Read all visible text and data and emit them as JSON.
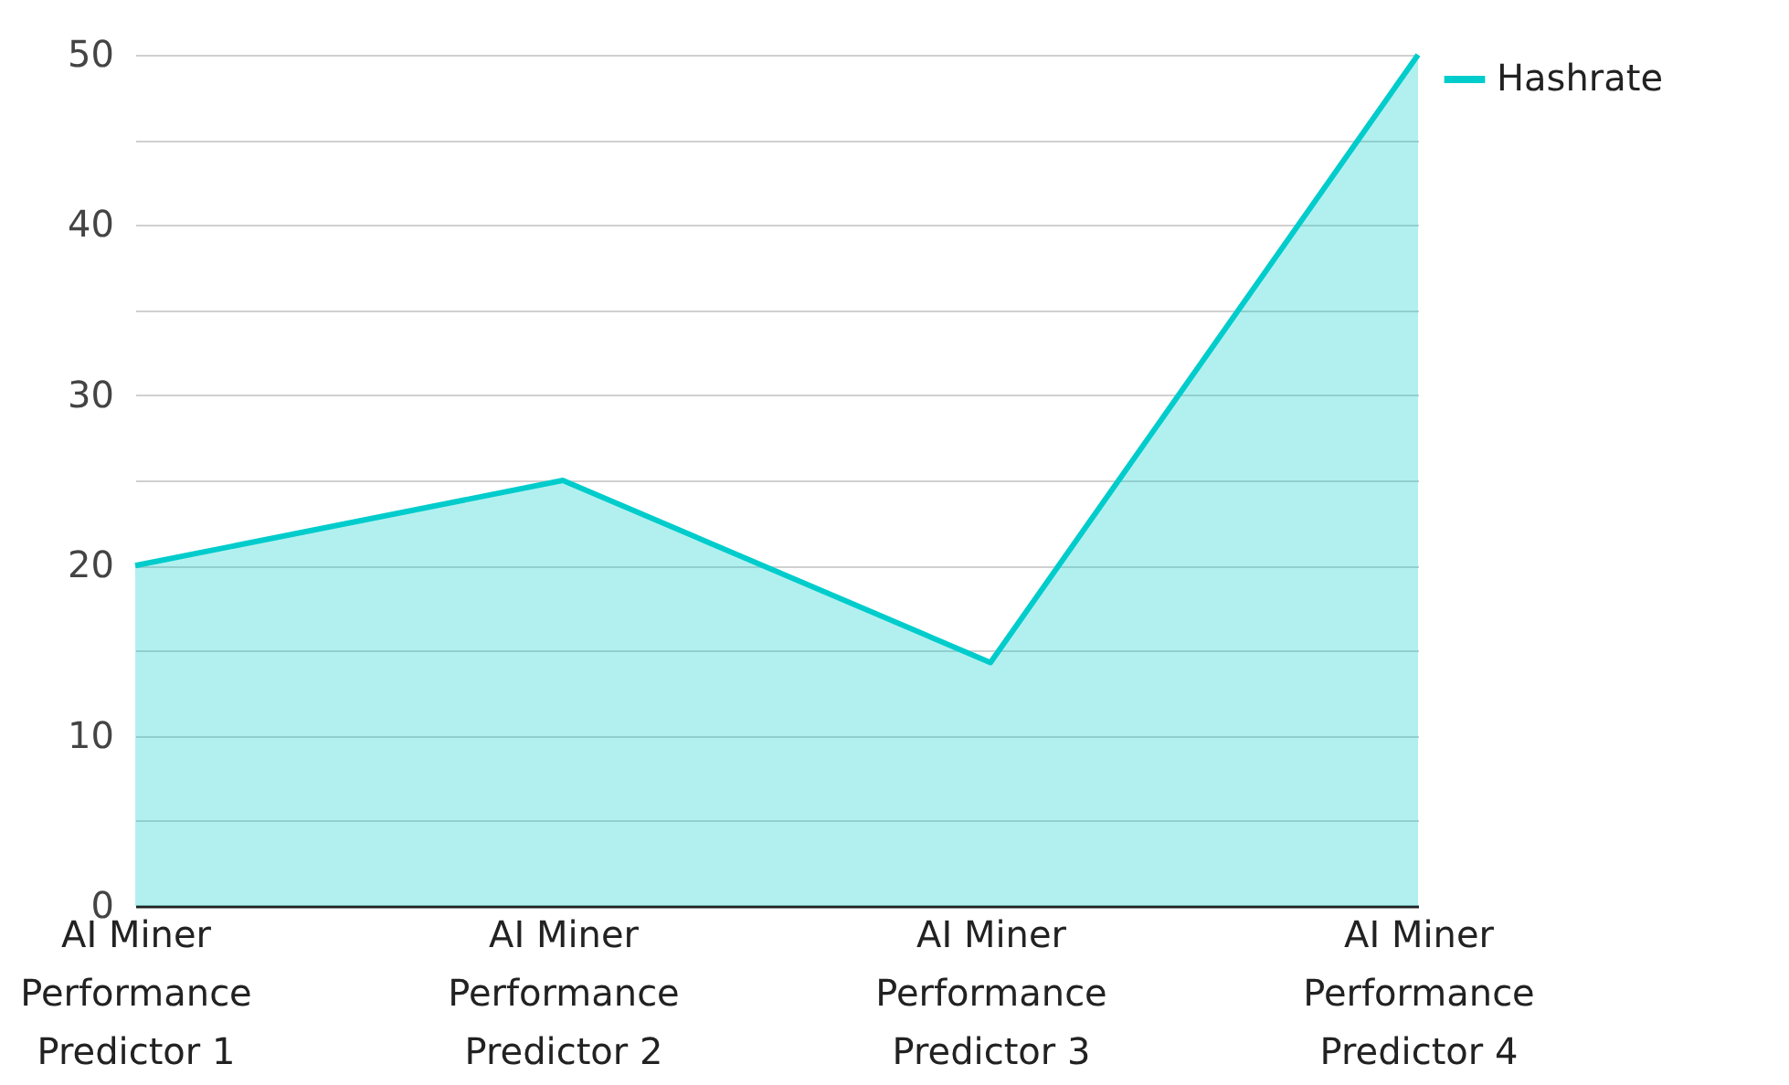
{
  "chart_data": {
    "type": "area",
    "categories": [
      "AI Miner Performance Predictor 1",
      "AI Miner Performance Predictor 2",
      "AI Miner Performance Predictor 3",
      "AI Miner Performance Predictor 4"
    ],
    "series": [
      {
        "name": "Hashrate",
        "color": "#00cccc",
        "values": [
          20,
          25,
          14.3,
          50
        ]
      }
    ],
    "ylim": [
      0,
      50
    ],
    "yticks": [
      0,
      {
        "value": 5,
        "label": null
      },
      10,
      {
        "value": 15,
        "label": null
      },
      20,
      {
        "value": 25,
        "label": null
      },
      30,
      {
        "value": 35,
        "label": null
      },
      40,
      {
        "value": 45,
        "label": null
      },
      50
    ],
    "grid": "y",
    "legend": "top right"
  }
}
